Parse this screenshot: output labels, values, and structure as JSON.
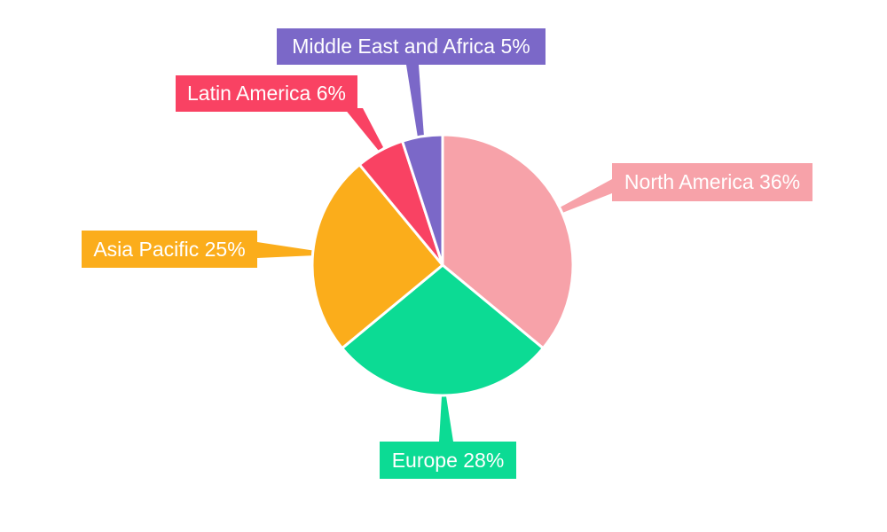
{
  "chart_data": {
    "type": "pie",
    "title": "",
    "legend_position": "callout-labels",
    "direction": "clockwise",
    "start_angle": "12-oclock",
    "label_text_color": "#FFFFFF",
    "slices": [
      {
        "label": "North America",
        "value": 36,
        "display": "North America 36%",
        "color": "#F7A2A9"
      },
      {
        "label": "Europe",
        "value": 28,
        "display": "Europe 28%",
        "color": "#0CDB94"
      },
      {
        "label": "Asia Pacific",
        "value": 25,
        "display": "Asia Pacific 25%",
        "color": "#FBAD1B"
      },
      {
        "label": "Latin America",
        "value": 6,
        "display": "Latin America 6%",
        "color": "#F94263"
      },
      {
        "label": "Middle East and Africa",
        "value": 5,
        "display": "Middle East and Africa 5%",
        "color": "#7B68C8"
      }
    ]
  },
  "canvas": {
    "background": "#FFFFFF"
  }
}
